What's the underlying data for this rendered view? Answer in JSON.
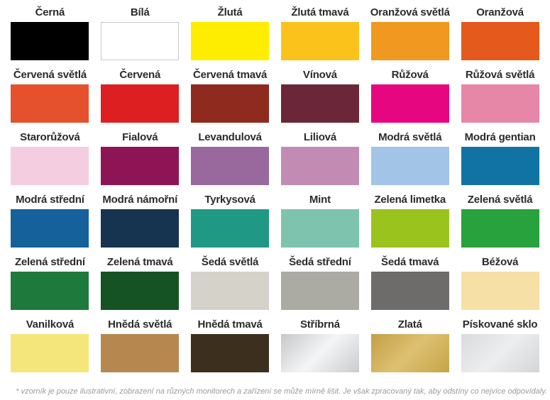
{
  "page": {
    "background": "#ffffff",
    "label_color": "#2b2b2b",
    "footnote_color": "#9b9b9b"
  },
  "grid": {
    "columns": 6,
    "rows": 6,
    "swatches": [
      {
        "label": "Černá",
        "color": "#000000"
      },
      {
        "label": "Bílá",
        "color": "#ffffff",
        "border": true
      },
      {
        "label": "Žlutá",
        "color": "#ffed00"
      },
      {
        "label": "Žlutá tmavá",
        "color": "#fac21b"
      },
      {
        "label": "Oranžová světlá",
        "color": "#f0981f"
      },
      {
        "label": "Oranžová",
        "color": "#e5591d"
      },
      {
        "label": "Červená světlá",
        "color": "#e5512c"
      },
      {
        "label": "Červená",
        "color": "#de1f21"
      },
      {
        "label": "Červená tmavá",
        "color": "#8e2b1e"
      },
      {
        "label": "Vínová",
        "color": "#6c2639"
      },
      {
        "label": "Růžová",
        "color": "#e6067f"
      },
      {
        "label": "Růžová světlá",
        "color": "#e787a8"
      },
      {
        "label": "Starorůžová",
        "color": "#f5cde1"
      },
      {
        "label": "Fialová",
        "color": "#8d1556"
      },
      {
        "label": "Levandulová",
        "color": "#99699e"
      },
      {
        "label": "Liliová",
        "color": "#c28bb3"
      },
      {
        "label": "Modrá světlá",
        "color": "#a1c4e7"
      },
      {
        "label": "Modrá gentian",
        "color": "#1173a4"
      },
      {
        "label": "Modrá střední",
        "color": "#14619c"
      },
      {
        "label": "Modrá námořní",
        "color": "#163450"
      },
      {
        "label": "Tyrkysová",
        "color": "#1f9884"
      },
      {
        "label": "Mint",
        "color": "#7ec3ad"
      },
      {
        "label": "Zelená limetka",
        "color": "#9ac31d"
      },
      {
        "label": "Zelená světlá",
        "color": "#27a23c"
      },
      {
        "label": "Zelená střední",
        "color": "#1e7a3c"
      },
      {
        "label": "Zelená tmavá",
        "color": "#165324"
      },
      {
        "label": "Šedá světlá",
        "color": "#d5d2c9"
      },
      {
        "label": "Šedá střední",
        "color": "#ababa4"
      },
      {
        "label": "Šedá tmavá",
        "color": "#6d6c6a"
      },
      {
        "label": "Béžová",
        "color": "#f6e0a6"
      },
      {
        "label": "Vanilková",
        "color": "#f5e67c"
      },
      {
        "label": "Hnědá světlá",
        "color": "#b78750"
      },
      {
        "label": "Hnědá tmavá",
        "color": "#3c2f1e"
      },
      {
        "label": "Stříbrná",
        "gradient": [
          "#c6c8ca",
          "#f4f5f6",
          "#c9cbcd"
        ]
      },
      {
        "label": "Zlatá",
        "gradient": [
          "#c49f45",
          "#ddc172",
          "#c6a347"
        ]
      },
      {
        "label": "Pískované sklo",
        "gradient": [
          "#d8dadb",
          "#edeeef",
          "#d3d5d6"
        ]
      }
    ]
  },
  "footnote": "* vzorník je pouze ilustrativní, zobrazení na různých monitorech a zařízení se může mírně lišit. Je však zpracovaný tak, aby odstíny co nejvíce odpovídaly."
}
